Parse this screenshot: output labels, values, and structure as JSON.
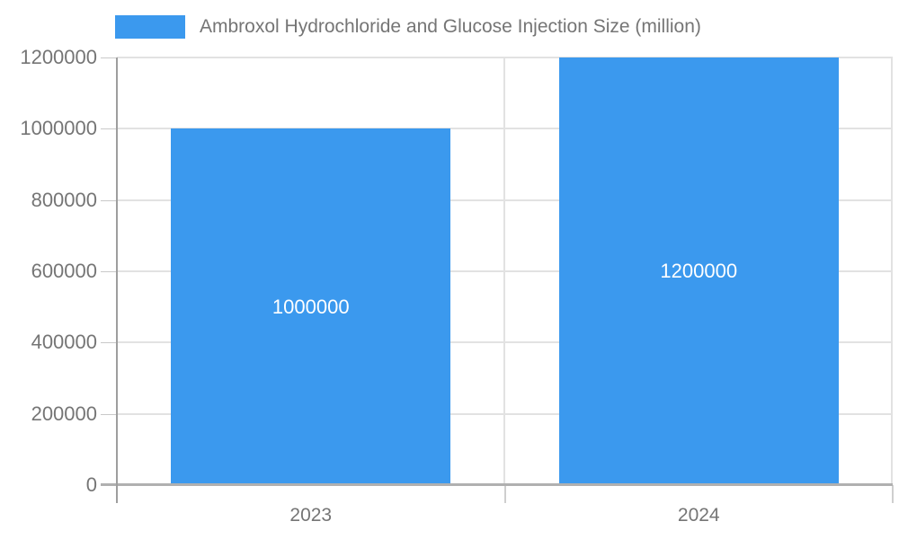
{
  "chart_data": {
    "type": "bar",
    "title": "",
    "legend_label": "Ambroxol Hydrochloride and Glucose Injection Size (million)",
    "legend_position": "top",
    "categories": [
      "2023",
      "2024"
    ],
    "series": [
      {
        "name": "Ambroxol Hydrochloride and Glucose Injection Size (million)",
        "values": [
          1000000,
          1200000
        ]
      }
    ],
    "data_labels": [
      "1000000",
      "1200000"
    ],
    "ylim": [
      0,
      1200000
    ],
    "ytick_interval": 200000,
    "yticks": [
      0,
      200000,
      400000,
      600000,
      800000,
      1000000,
      1200000
    ],
    "ytick_labels": [
      "0",
      "200000",
      "400000",
      "600000",
      "800000",
      "1000000",
      "1200000"
    ],
    "grid": true,
    "colors": {
      "bar": "#3B99EE",
      "bar_label_text": "#ffffff",
      "axis_text": "#757575",
      "axis_line": "#9e9e9e",
      "grid_line": "#e2e2e2"
    }
  }
}
